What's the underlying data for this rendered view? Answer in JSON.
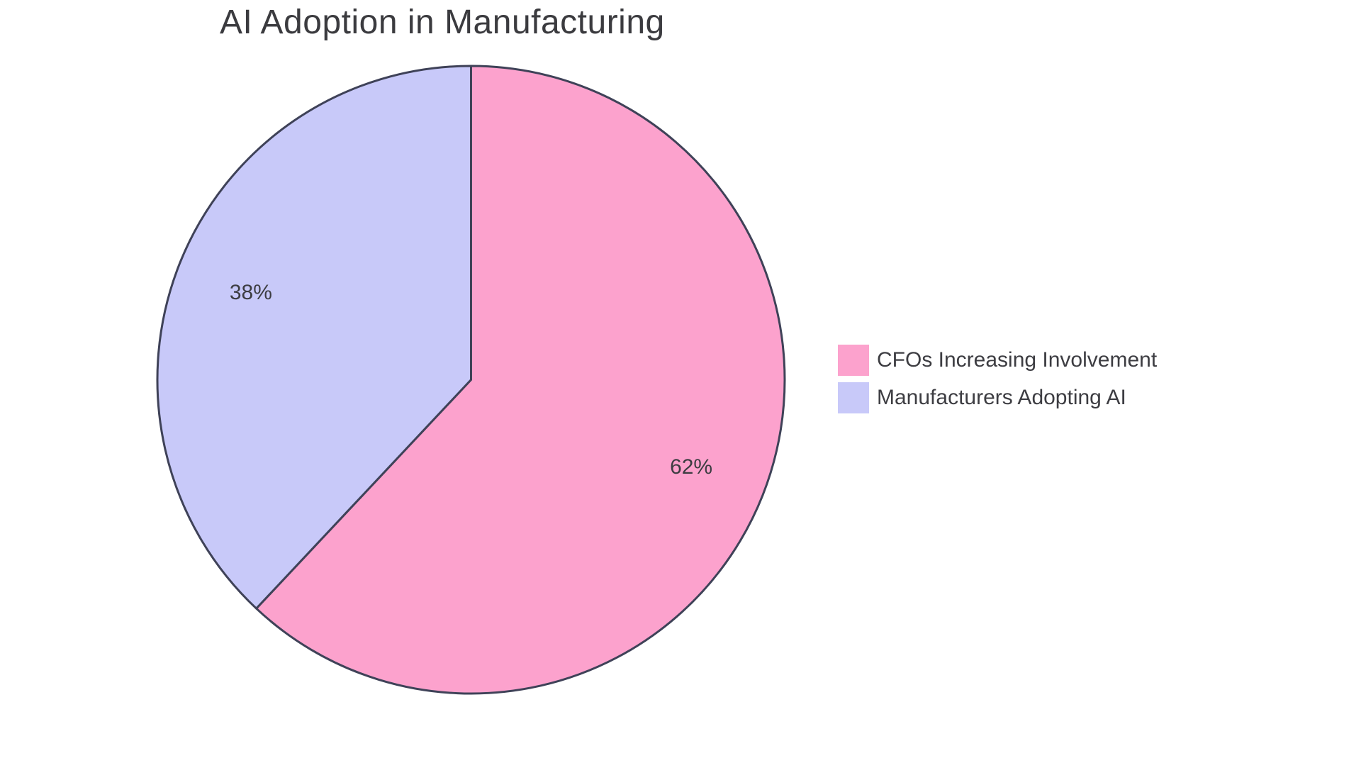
{
  "page": {
    "background_color": "#ffffff"
  },
  "chart_data": {
    "type": "pie",
    "title": "AI Adoption in Manufacturing",
    "legend_position": "right",
    "direction": "clockwise",
    "start_angle_deg": 0,
    "slice_border_color": "#3f4258",
    "slice_label_color": "#3d3d42",
    "title_color": "#3b3b3f",
    "segments": [
      {
        "label": "CFOs Increasing Involvement",
        "value": 62,
        "display": "62%",
        "color": "#fca2cd"
      },
      {
        "label": "Manufacturers Adopting AI",
        "value": 38,
        "display": "38%",
        "color": "#c8c9f9"
      }
    ]
  }
}
